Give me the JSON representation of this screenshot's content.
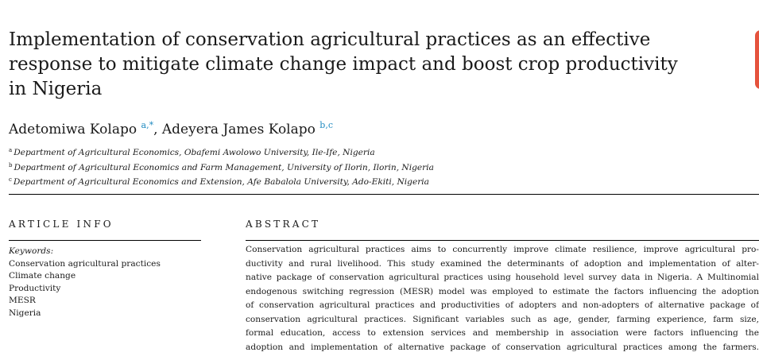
{
  "title_lines": [
    "Implementation of conservation agricultural practices as an effective",
    "response to mitigate climate change impact and boost crop productivity",
    "in Nigeria"
  ],
  "authors": [
    {
      "name": "Adetomiwa Kolapo",
      "marks": "a,*"
    },
    {
      "name": "Adeyera James Kolapo",
      "marks": "b,c"
    }
  ],
  "author_separator": ", ",
  "affiliations": [
    {
      "mark": "a",
      "text": "Department of Agricultural Economics, Obafemi Awolowo University, Ile-Ife, Nigeria"
    },
    {
      "mark": "b",
      "text": "Department of Agricultural Economics and Farm Management, University of Ilorin, Ilorin, Nigeria"
    },
    {
      "mark": "c",
      "text": "Department of Agricultural Economics and Extension, Afe Babalola University, Ado-Ekiti, Nigeria"
    }
  ],
  "article_info_heading": "ARTICLE INFO",
  "abstract_heading": "ABSTRACT",
  "keywords_label": "Keywords:",
  "keywords": [
    "Conservation agricultural practices",
    "Climate change",
    "Productivity",
    "MESR",
    "Nigeria"
  ],
  "abstract_lines": [
    "Conservation agricultural practices aims to concurrently improve climate resilience, improve agricultural pro-",
    "ductivity and rural livelihood. This study examined the determinants of adoption and implementation of alter-",
    "native package of conservation agricultural practices using household level survey data in Nigeria. A Multinomial",
    "endogenous switching regression (MESR) model was employed to estimate the factors influencing the adoption",
    "of conservation agricultural practices and productivities of adopters and non-adopters of alternative package of",
    "conservation agricultural practices. Significant variables such as age, gender, farming experience, farm size,",
    "formal education, access to extension services and membership in association were factors influencing the",
    "adoption and implementation of alternative package of conservation agricultural practices among the farmers."
  ],
  "colors": {
    "link": "#1f8ac0",
    "badge": "#e5533d"
  }
}
